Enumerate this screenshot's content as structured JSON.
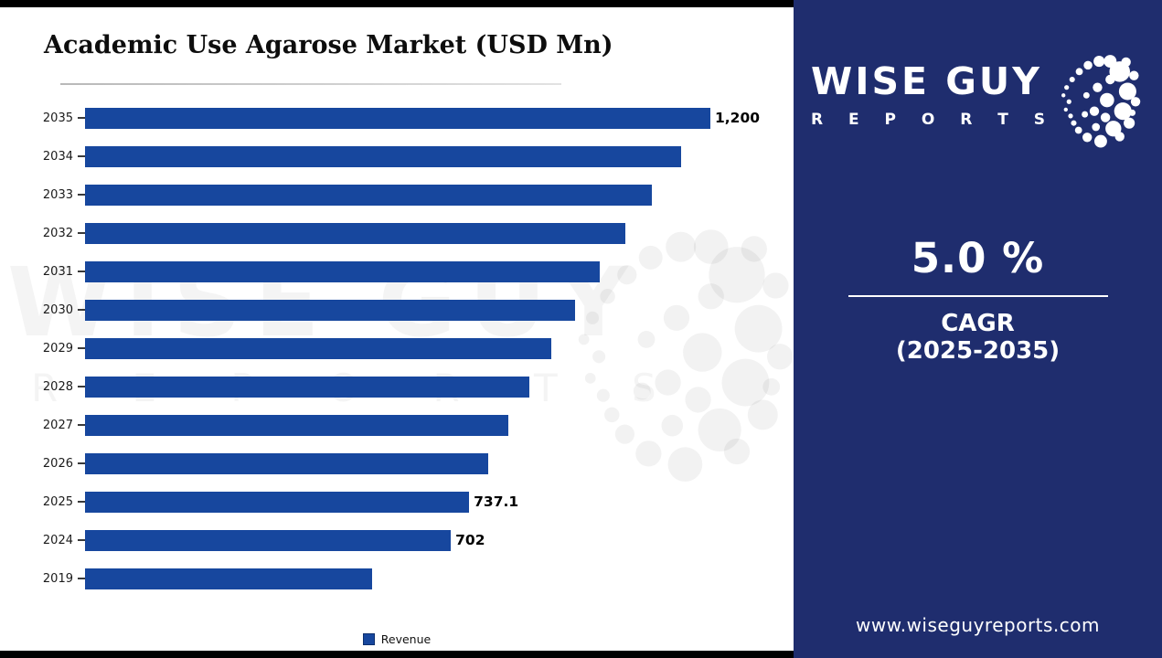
{
  "page": {
    "title": "Academic Use Agarose Market (USD Mn)"
  },
  "legend": {
    "revenue": "Revenue"
  },
  "watermark": {
    "line1": "WISE GUY",
    "line2": "R E P O R T S"
  },
  "sidebar": {
    "logo_line1": "WISE GUY",
    "logo_line2": "R E P O R T S",
    "cagr_value": "5.0 %",
    "cagr_line1": "CAGR",
    "cagr_line2": "(2025-2035)",
    "website": "www.wiseguyreports.com"
  },
  "chart_data": {
    "type": "bar",
    "orientation": "horizontal",
    "title": "Academic Use Agarose Market (USD Mn)",
    "series_name": "Revenue",
    "categories": [
      "2035",
      "2034",
      "2033",
      "2032",
      "2031",
      "2030",
      "2029",
      "2028",
      "2027",
      "2026",
      "2025",
      "2024",
      "2019"
    ],
    "values": [
      1200,
      1143,
      1088,
      1036,
      987,
      940,
      895,
      853,
      812,
      774,
      737.1,
      702,
      550
    ],
    "value_labels": {
      "2035": "1,200",
      "2025": "737.1",
      "2024": "702"
    },
    "xlim": [
      0,
      1300
    ],
    "grid": false,
    "legend_position": "bottom",
    "bar_color": "#17479e"
  },
  "colors": {
    "bar": "#17479e",
    "panel": "#1f2d6e",
    "frame": "#000000"
  }
}
